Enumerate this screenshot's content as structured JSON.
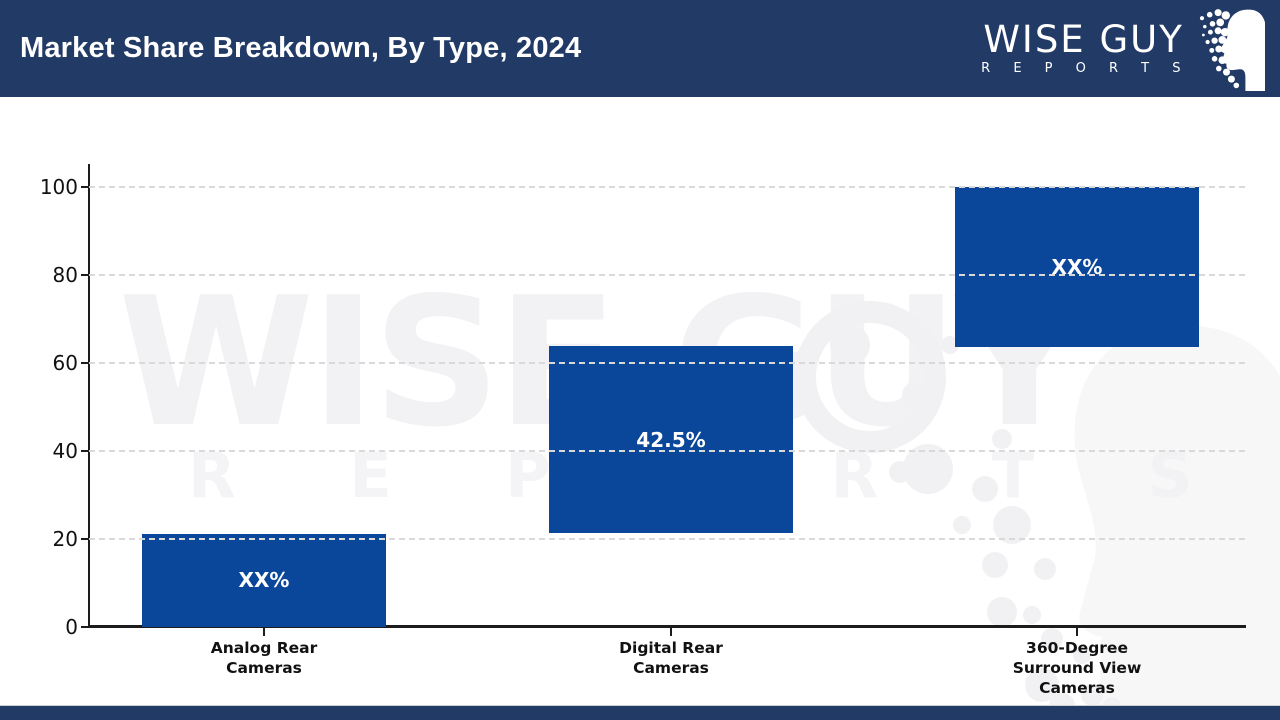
{
  "header": {
    "title": "Market Share Breakdown, By Type, 2024",
    "logo_line1": "WISE GUY",
    "logo_line2": "R E P O R T S",
    "background_color": "#213A66"
  },
  "watermark": {
    "line1": "WISE GUY",
    "line2": "R E P O R T S"
  },
  "chart_data": {
    "type": "bar",
    "subtype": "floating_segment_waterfall",
    "title": "Market Share Breakdown, By Type, 2024",
    "categories": [
      "Analog Rear Cameras",
      "Digital Rear Cameras",
      "360-Degree Surround View Cameras"
    ],
    "bars": [
      {
        "category": "Analog Rear Cameras",
        "lines": [
          "Analog Rear",
          "Cameras"
        ],
        "start": 0,
        "end": 21.2,
        "label": "XX%"
      },
      {
        "category": "Digital Rear Cameras",
        "lines": [
          "Digital Rear",
          "Cameras"
        ],
        "start": 21.3,
        "end": 63.8,
        "label": "42.5%"
      },
      {
        "category": "360-Degree Surround View Cameras",
        "lines": [
          "360-Degree",
          "Surround View",
          "Cameras"
        ],
        "start": 63.7,
        "end": 100,
        "label": "XX%"
      }
    ],
    "yticks": [
      0,
      20,
      40,
      60,
      80,
      100
    ],
    "ylim": [
      0,
      105
    ],
    "xlabel": "",
    "ylabel": "",
    "grid": "dashed-horizontal-over-bars",
    "bar_color": "#0A4699",
    "bar_label_color": "#ffffff",
    "axis_color": "#1c1c1c",
    "gridline_color": "#d9d9d9"
  }
}
